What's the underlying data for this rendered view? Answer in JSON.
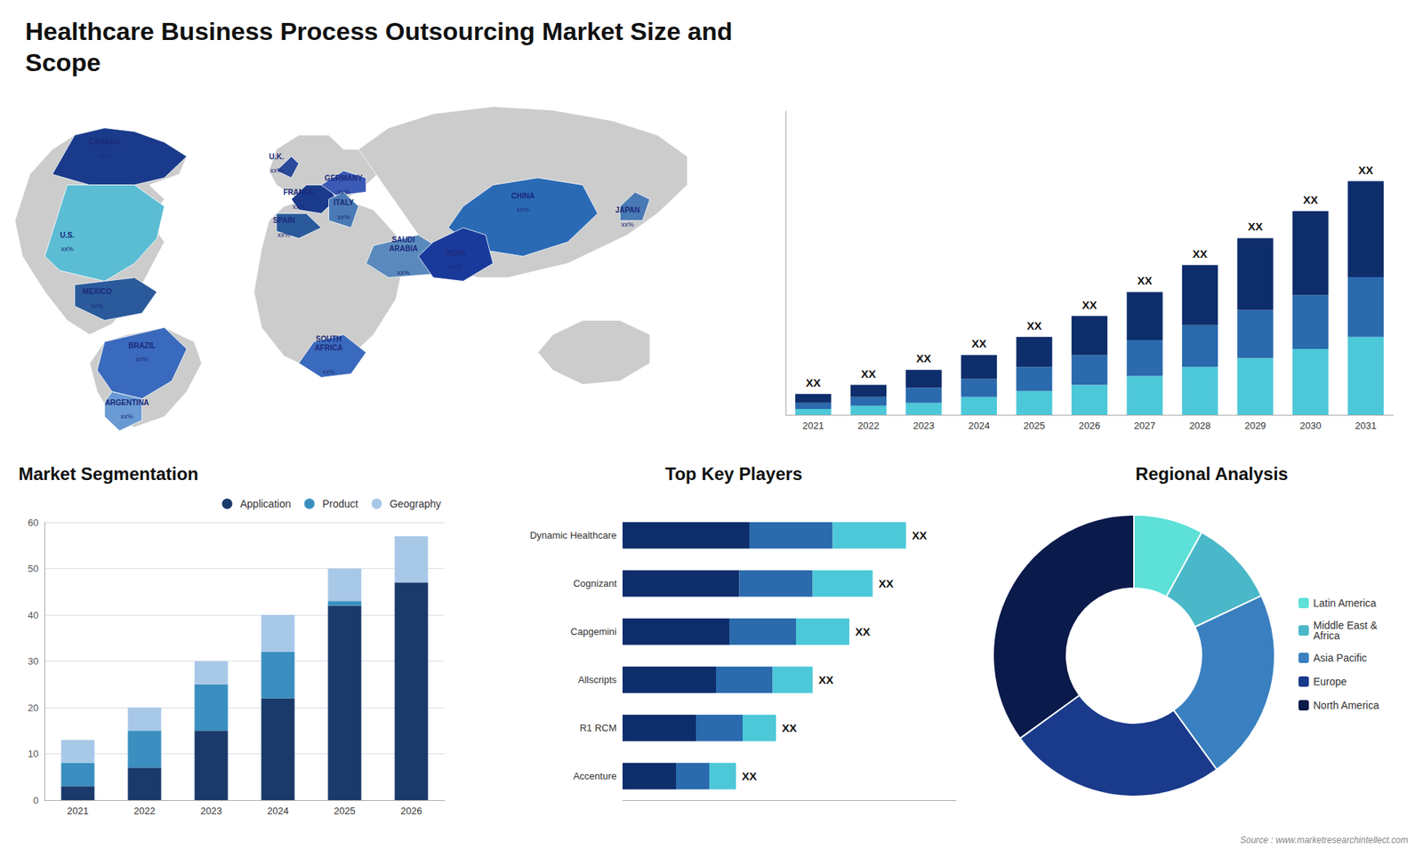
{
  "title": "Healthcare Business Process Outsourcing Market Size and\nScope",
  "annotations": [
    "Source : www.marketresearchintellect.com"
  ],
  "chart_data": [
    {
      "type": "map",
      "categories": [
        "CANADA",
        "U.S.",
        "MEXICO",
        "BRAZIL",
        "ARGENTINA",
        "U.K.",
        "FRANCE",
        "SPAIN",
        "GERMANY",
        "ITALY",
        "SAUDI\nARABIA",
        "SOUTH\nAFRICA",
        "CHINA",
        "INDIA",
        "JAPAN"
      ],
      "annotations": [
        "xx%",
        "xx%",
        "xx%",
        "xx%",
        "xx%",
        "xx%",
        "xx%",
        "xx%",
        "xx%",
        "xx%",
        "xx%",
        "xx%",
        "xx%",
        "xx%",
        "xx%"
      ],
      "colors": [
        "#1a3a8b",
        "#5bbdd4",
        "#2a5a9b",
        "#3a6abd",
        "#6a9ad4",
        "#2a4a9b",
        "#1a3a8b",
        "#2a5a9b",
        "#3a5ab5",
        "#4a7ab5",
        "#5a8abd",
        "#3a6abd",
        "#2a6ab5",
        "#1a3a9b",
        "#4a7ab5"
      ]
    },
    {
      "type": "bar",
      "stacked": true,
      "categories": [
        "2021",
        "2022",
        "2023",
        "2024",
        "2025",
        "2026",
        "2027",
        "2028",
        "2029",
        "2030",
        "2031"
      ],
      "series": [
        {
          "color": "#4dc8d8",
          "values": [
            2,
            3,
            4,
            6,
            8,
            10,
            13,
            16,
            19,
            22,
            26
          ]
        },
        {
          "color": "#2a6aad",
          "values": [
            2,
            3,
            5,
            6,
            8,
            10,
            12,
            14,
            16,
            18,
            20
          ]
        },
        {
          "color": "#0e2d6b",
          "values": [
            3,
            4,
            6,
            8,
            10,
            13,
            16,
            20,
            24,
            28,
            32
          ]
        }
      ],
      "annotations": [
        "XX",
        "XX",
        "XX",
        "XX",
        "XX",
        "XX",
        "XX",
        "XX",
        "XX",
        "XX",
        "XX"
      ],
      "ylim": [
        0,
        101.4
      ],
      "tick_labels": "x",
      "grid": false
    },
    {
      "type": "bar",
      "title": "Market Segmentation",
      "stacked": true,
      "categories": [
        "2021",
        "2022",
        "2023",
        "2024",
        "2025",
        "2026"
      ],
      "series": [
        {
          "name": "Application",
          "color": "#1a3a6b",
          "values": [
            3,
            7,
            15,
            22,
            42,
            47
          ]
        },
        {
          "name": "Product",
          "color": "#3a8fc0",
          "values": [
            5,
            8,
            10,
            10,
            1,
            0
          ]
        },
        {
          "name": "Geography",
          "color": "#a8c8e8",
          "values": [
            5,
            5,
            5,
            8,
            7,
            10
          ]
        }
      ],
      "ylim": [
        0,
        60
      ],
      "yticks": [
        0,
        10,
        20,
        30,
        40,
        50,
        60
      ],
      "grid": true,
      "legend": "top-right"
    },
    {
      "type": "bar",
      "title": "Top Key Players",
      "orientation": "horizontal",
      "stacked": true,
      "categories": [
        "Dynamic Healthcare",
        "Cognizant",
        "Capgemini",
        "Allscripts",
        "R1 RCM",
        "Accenture"
      ],
      "series": [
        {
          "color": "#0e2d6b",
          "values": [
            38,
            35,
            32,
            28,
            22,
            16
          ]
        },
        {
          "color": "#2a6aad",
          "values": [
            25,
            22,
            20,
            17,
            14,
            10
          ]
        },
        {
          "color": "#4dc8d8",
          "values": [
            22,
            18,
            16,
            12,
            10,
            8
          ]
        }
      ],
      "annotations": [
        "XX",
        "XX",
        "XX",
        "XX",
        "XX",
        "XX"
      ],
      "xlim": [
        0,
        100
      ],
      "tick_labels": "y",
      "grid": false
    },
    {
      "type": "pie",
      "title": "Regional Analysis",
      "categories": [
        "Latin America",
        "Middle East &\nAfrica",
        "Asia Pacific",
        "Europe",
        "North America"
      ],
      "values": [
        8,
        10,
        22,
        25,
        35
      ],
      "colors": [
        "#5de0d8",
        "#4ab8c8",
        "#3a80c0",
        "#1a3a8b",
        "#0a1a4b"
      ],
      "legend": "right"
    }
  ]
}
